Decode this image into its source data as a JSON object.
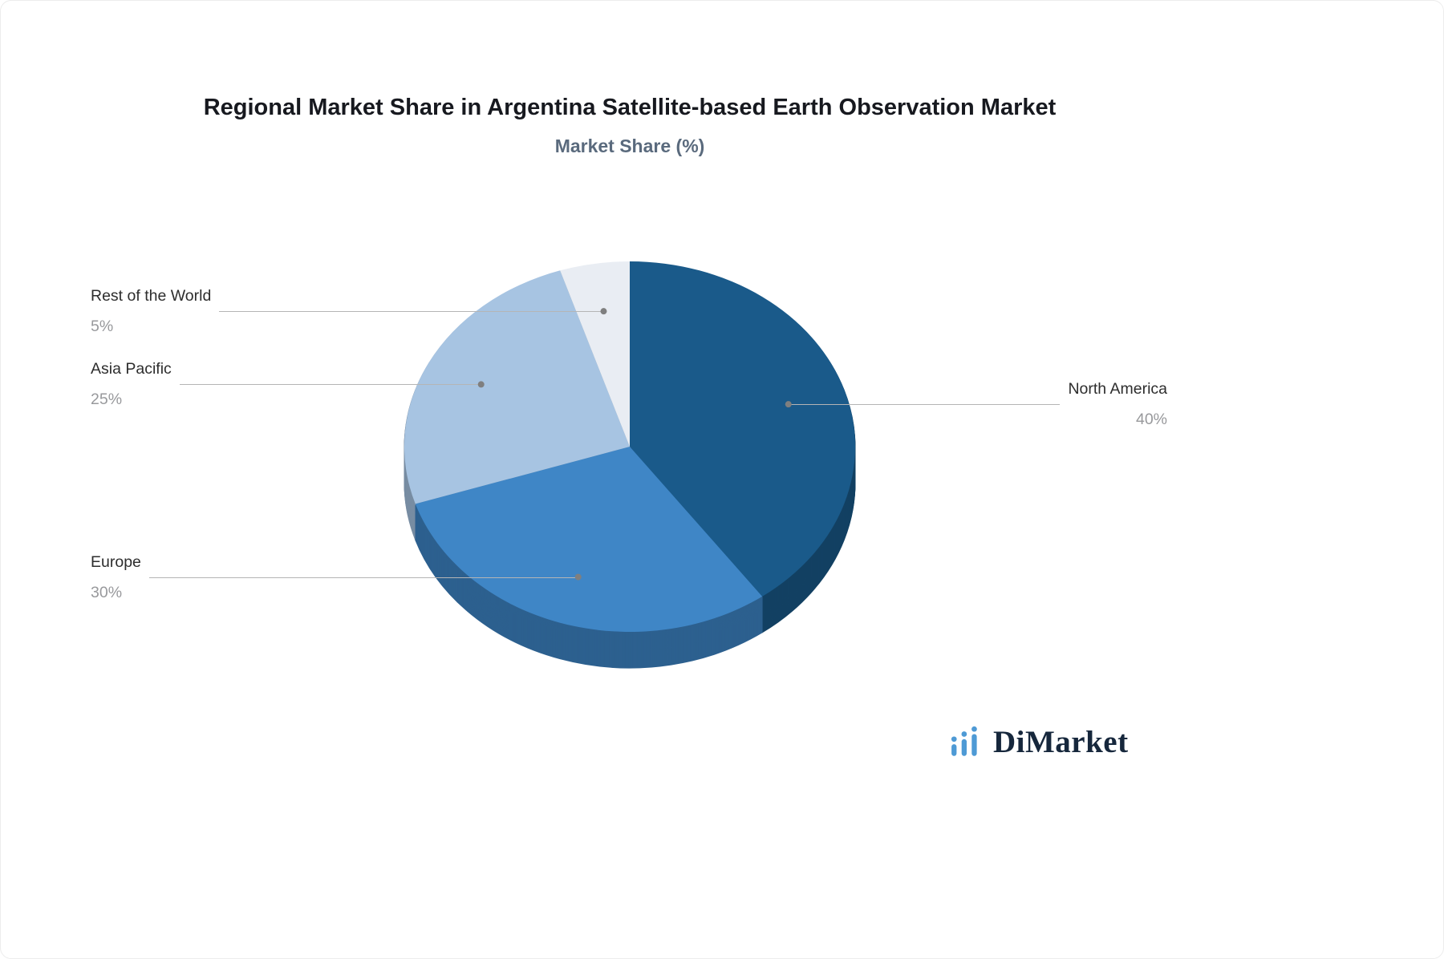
{
  "chart_data": {
    "type": "pie",
    "title": "Regional Market Share in Argentina Satellite-based Earth Observation Market",
    "subtitle": "Market Share (%)",
    "unit": "%",
    "direction": "clockwise",
    "start_angle_deg": 0,
    "effect": "3d-extruded",
    "legend_position": "callout-labels",
    "labels": [
      "North America",
      "Europe",
      "Asia Pacific",
      "Rest of the World"
    ],
    "values": [
      40,
      30,
      25,
      5
    ],
    "display_values": [
      "40%",
      "30%",
      "25%",
      "5%"
    ],
    "colors": [
      "#1A5A8A",
      "#3F86C6",
      "#A7C4E2",
      "#E9EDF3"
    ],
    "leader_line_color": "#b5b5b5",
    "marker_dot_color": "#7f7f7f"
  },
  "branding": {
    "logo_text": "DiMarket",
    "logo_icon": "bar-chart-icon",
    "logo_text_color": "#16273c",
    "logo_icon_color": "#4E9AD5"
  }
}
